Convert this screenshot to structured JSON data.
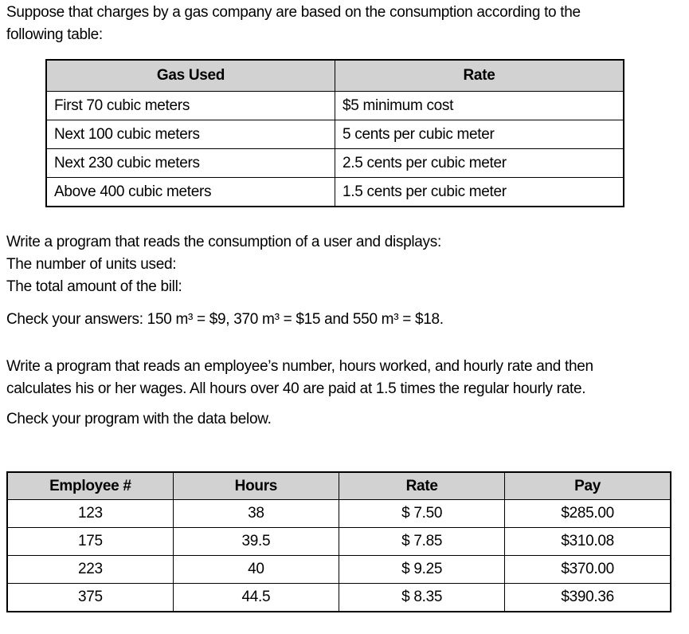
{
  "intro": {
    "line1": "Suppose that charges by a gas company are based on the consumption according to the",
    "line2": "following table:"
  },
  "gas_table": {
    "headers": [
      "Gas Used",
      "Rate"
    ],
    "rows": [
      [
        "First 70 cubic meters",
        "$5 minimum cost"
      ],
      [
        "Next 100 cubic meters",
        "5 cents per cubic meter"
      ],
      [
        "Next 230 cubic meters",
        "2.5 cents per cubic meter"
      ],
      [
        "Above 400 cubic meters",
        "1.5 cents per cubic meter"
      ]
    ]
  },
  "task1": {
    "line1": "Write a program that reads the consumption of a user and displays:",
    "line2": "The number of units used:",
    "line3": "The total amount of the bill:",
    "check": "Check your answers: 150 m³ = $9, 370 m³ = $15 and 550 m³ = $18."
  },
  "task2": {
    "line1": "Write a program that reads an employee’s number, hours worked, and hourly rate and then",
    "line2": "calculates his or her wages. All hours over 40 are paid at 1.5 times the regular hourly rate.",
    "check": "Check your program with the data below."
  },
  "pay_table": {
    "headers": [
      "Employee #",
      "Hours",
      "Rate",
      "Pay"
    ],
    "rows": [
      [
        "123",
        "38",
        "$ 7.50",
        "$285.00"
      ],
      [
        "175",
        "39.5",
        "$ 7.85",
        "$310.08"
      ],
      [
        "223",
        "40",
        "$ 9.25",
        "$370.00"
      ],
      [
        "375",
        "44.5",
        "$ 8.35",
        "$390.36"
      ]
    ]
  },
  "colors": {
    "table_header_bg": "#d2d2d2",
    "table_border": "#000000",
    "text": "#000000",
    "page_bg": "#ffffff"
  }
}
